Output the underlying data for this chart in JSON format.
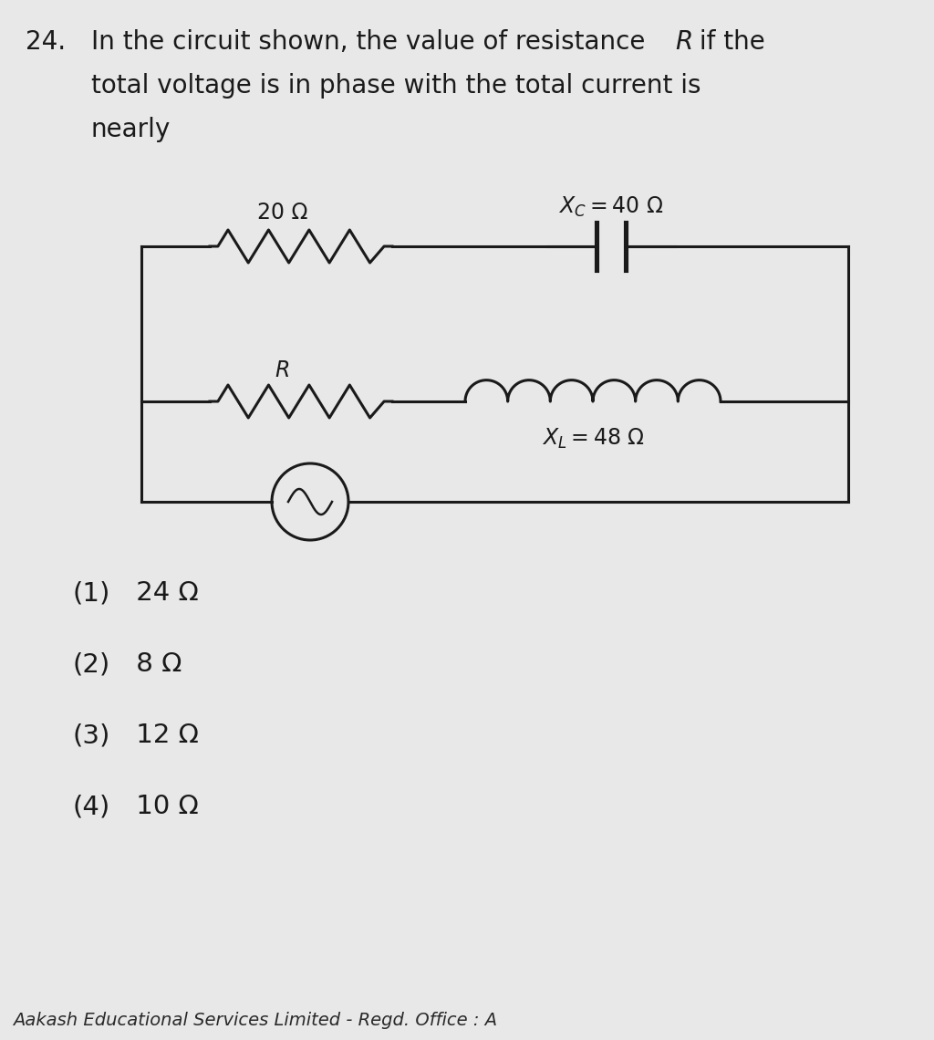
{
  "bg_color": "#d8d8d8",
  "inner_bg": "#e8e8e8",
  "line_color": "#1a1a1a",
  "text_color": "#1a1a1a",
  "circuit_lw": 2.2,
  "question_number": "24.",
  "q_line1_left": "In the circuit shown, the value of resistance ",
  "q_line1_R": "R",
  "q_line1_right": " if the",
  "q_line2": "total voltage is in phase with the total current is",
  "q_line3": "nearly",
  "res_top_label": "20 Ω",
  "cap_label_top": "X",
  "cap_label_sub": "C",
  "cap_label_rest": " = 40 Ω",
  "res_bot_label": "R",
  "ind_label_top": "X",
  "ind_label_sub": "L",
  "ind_label_rest": " = 48 Ω",
  "options": [
    [
      "(1)",
      " 24 Ω"
    ],
    [
      "(2)",
      " 8 Ω"
    ],
    [
      "(3)",
      " 12 Ω"
    ],
    [
      "(4)",
      " 10 Ω"
    ]
  ],
  "footer": "Aakash Educational Services Limited - Regd. Office : A"
}
